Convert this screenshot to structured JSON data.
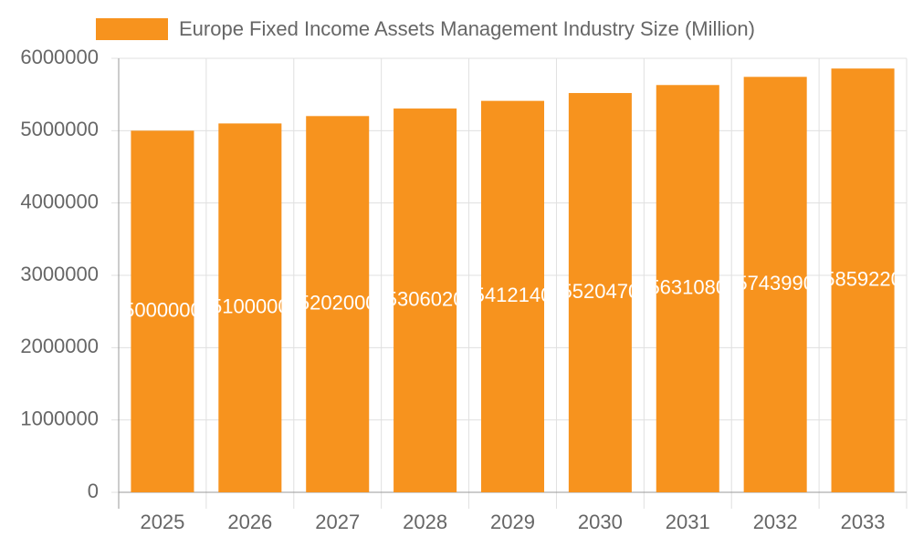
{
  "chart_data": {
    "type": "bar",
    "legend": "Europe Fixed Income Assets Management Industry Size (Million)",
    "categories": [
      "2025",
      "2026",
      "2027",
      "2028",
      "2029",
      "2030",
      "2031",
      "2032",
      "2033"
    ],
    "values": [
      5000000,
      5100000,
      5202000,
      5306020,
      5412140,
      5520470,
      5631080,
      5743990,
      5859220
    ],
    "color": "#f7931e",
    "ylim": [
      0,
      6000000
    ],
    "yticks": [
      0,
      1000000,
      2000000,
      3000000,
      4000000,
      5000000,
      6000000
    ],
    "grid": true
  }
}
